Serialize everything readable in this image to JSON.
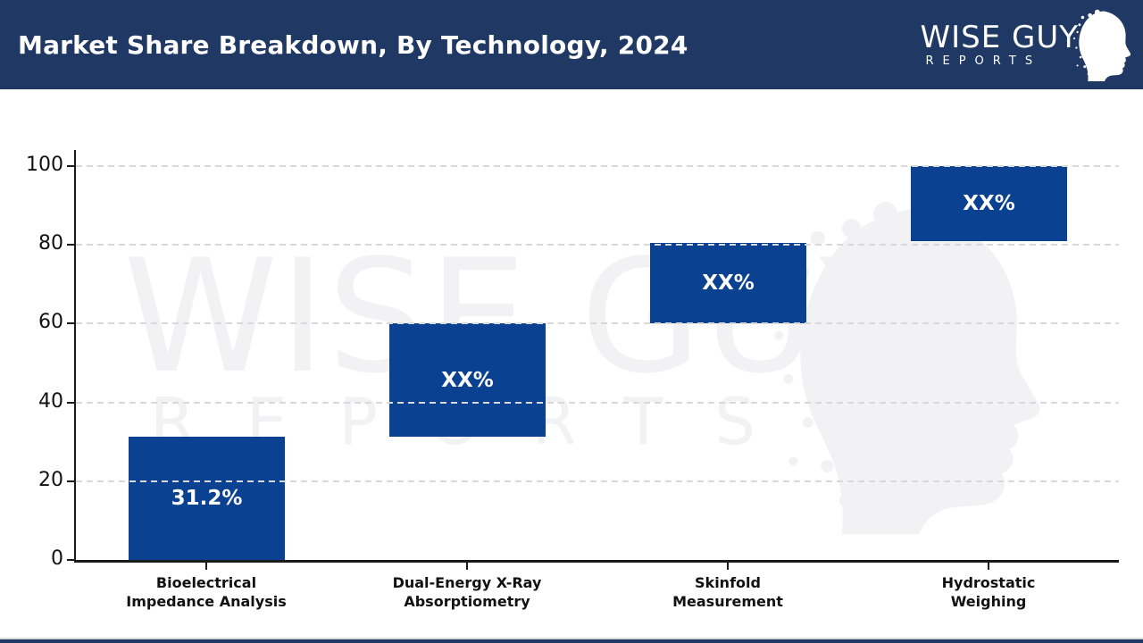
{
  "header": {
    "title": "Market Share Breakdown, By Technology, 2024",
    "logo": {
      "name": "WISE GUY",
      "sub": "REPORTS"
    }
  },
  "watermark": {
    "name": "WISE GUY",
    "sub": "REPORTS"
  },
  "footer": {},
  "chart_data": {
    "type": "bar",
    "subtype": "waterfall",
    "title": "Market Share Breakdown, By Technology, 2024",
    "categories": [
      "Bioelectrical Impedance Analysis",
      "Dual-Energy X-Ray Absorptiometry",
      "Skinfold Measurement",
      "Hydrostatic Weighing"
    ],
    "category_lines": [
      [
        "Bioelectrical",
        "Impedance Analysis"
      ],
      [
        "Dual-Energy X-Ray",
        "Absorptiometry"
      ],
      [
        "Skinfold",
        "Measurement"
      ],
      [
        "Hydrostatic",
        "Weighing"
      ]
    ],
    "segments": [
      {
        "start": 0,
        "end": 31.2,
        "label": "31.2%"
      },
      {
        "start": 31.2,
        "end": 60,
        "label": "XX%"
      },
      {
        "start": 60,
        "end": 80.5,
        "label": "XX%"
      },
      {
        "start": 81,
        "end": 100,
        "label": "XX%"
      }
    ],
    "ylim": [
      0,
      105
    ],
    "yticks": [
      0,
      20,
      40,
      60,
      80,
      100
    ],
    "grid": "dashed horizontal, drawn over bars",
    "legend": "none",
    "bar_color": "#0a4190",
    "bar_label_color": "#ffffff",
    "axis_color": "#1a1a1a",
    "gridline_color": "#d9d9d9",
    "header_bg": "#1f3864",
    "watermark_color": "#f2f2f4"
  }
}
